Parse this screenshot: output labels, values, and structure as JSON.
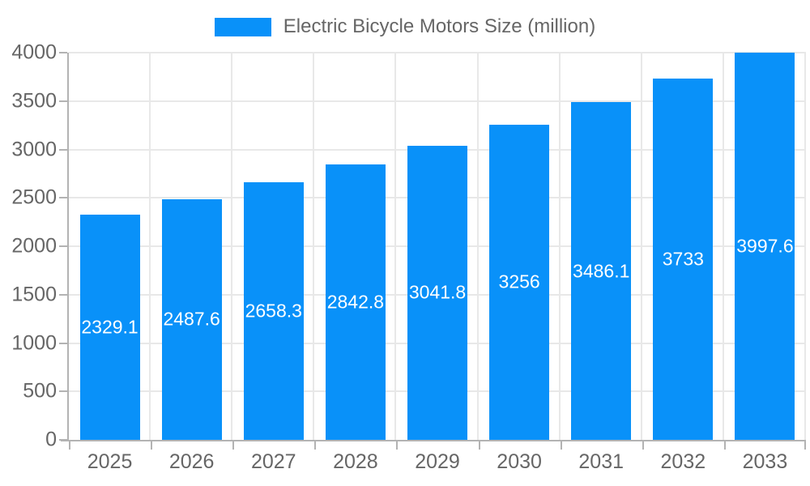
{
  "legend": {
    "label": "Electric Bicycle Motors Size (million)"
  },
  "chart_data": {
    "type": "bar",
    "title": "Electric Bicycle Motors Size (million)",
    "categories": [
      "2025",
      "2026",
      "2027",
      "2028",
      "2029",
      "2030",
      "2031",
      "2032",
      "2033"
    ],
    "values": [
      2329.1,
      2487.6,
      2658.3,
      2842.8,
      3041.8,
      3256,
      3486.1,
      3733,
      3997.6
    ],
    "value_labels": [
      "2329.1",
      "2487.6",
      "2658.3",
      "2842.8",
      "3041.8",
      "3256",
      "3486.1",
      "3733",
      "3997.6"
    ],
    "xlabel": "",
    "ylabel": "",
    "ylim": [
      0,
      4000
    ],
    "y_ticks": [
      0,
      500,
      1000,
      1500,
      2000,
      2500,
      3000,
      3500,
      4000
    ],
    "grid": true,
    "legend_position": "top",
    "value_label_position": "center-inside",
    "colors": {
      "bar": "#0991f9",
      "axis_text": "#666666",
      "legend_text": "#666666",
      "value_text": "#ffffff",
      "grid_line": "#e8e8e8",
      "axis_line": "#b3b3b3",
      "background": "#ffffff"
    }
  }
}
